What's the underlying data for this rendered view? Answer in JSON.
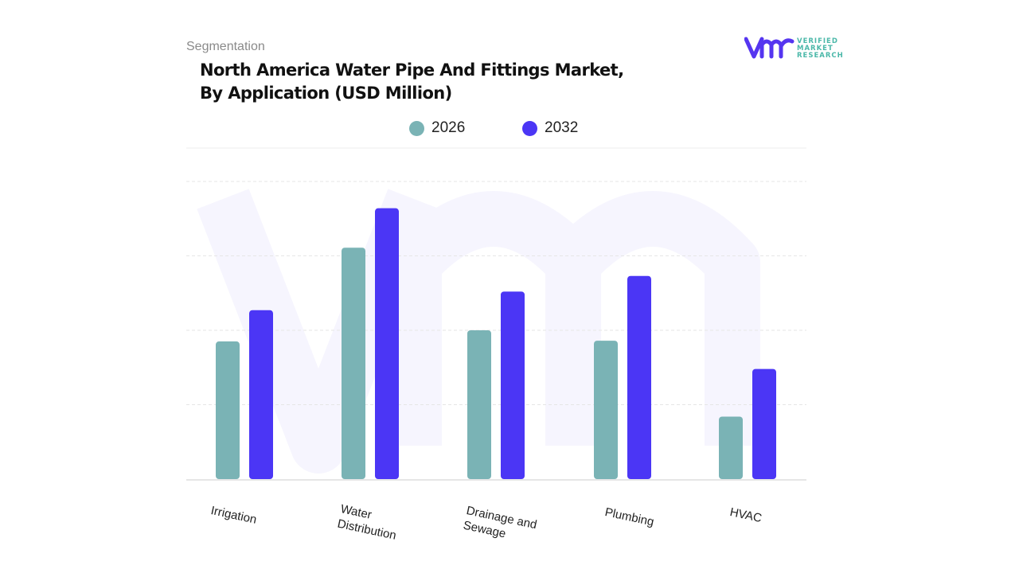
{
  "segment_label": "Segmentation",
  "logo": {
    "text": [
      "VERIFIED",
      "MARKET",
      "RESEARCH"
    ],
    "brand_color": "#5535f0",
    "text_color": "#4bb8a9"
  },
  "chart_data": {
    "type": "bar",
    "title": "North America Water Pipe And Fittings Market, By Application (USD Million)",
    "categories": [
      "Irrigation",
      "Water Distribution",
      "Drainage and Sewage",
      "Plumbing",
      "HVAC"
    ],
    "series": [
      {
        "name": "2026",
        "color": "#7ab3b5",
        "values": [
          1.85,
          3.11,
          2.0,
          1.86,
          0.84
        ]
      },
      {
        "name": "2032",
        "color": "#4b36f5",
        "values": [
          2.27,
          3.64,
          2.52,
          2.73,
          1.48
        ]
      }
    ],
    "ylim": [
      0,
      4
    ],
    "grid": true,
    "legend": "top"
  }
}
